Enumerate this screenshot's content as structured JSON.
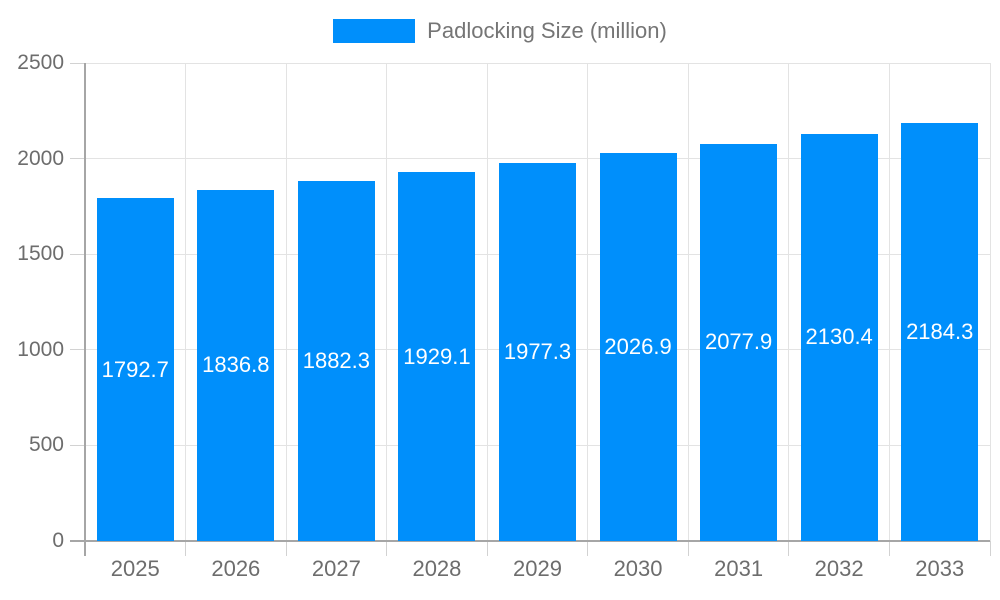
{
  "legend": {
    "label": "Padlocking Size (million)"
  },
  "chart_data": {
    "type": "bar",
    "title": "Padlocking Size (million)",
    "categories": [
      "2025",
      "2026",
      "2027",
      "2028",
      "2029",
      "2030",
      "2031",
      "2032",
      "2033"
    ],
    "series": [
      {
        "name": "Padlocking Size (million)",
        "values": [
          1792.7,
          1836.8,
          1882.3,
          1929.1,
          1977.3,
          2026.9,
          2077.9,
          2130.4,
          2184.3
        ]
      }
    ],
    "value_labels": [
      "1792.7",
      "1836.8",
      "1882.3",
      "1929.1",
      "1977.3",
      "2026.9",
      "2077.9",
      "2130.4",
      "2184.3"
    ],
    "xlabel": "",
    "ylabel": "",
    "ylim": [
      0,
      2500
    ],
    "yticks": [
      0,
      500,
      1000,
      1500,
      2000,
      2500
    ],
    "ytick_labels": [
      "0",
      "500",
      "1000",
      "1500",
      "2000",
      "2500"
    ],
    "grid": true,
    "legend_position": "top"
  },
  "colors": {
    "bar": "#008FFB",
    "value_label": "#ffffff",
    "grid": "#e3e3e3",
    "tick": "#d2d2d2",
    "axis_line": "#a6a6a6",
    "axis_text": "#6d6d6d",
    "legend_text": "#757575",
    "background": "#ffffff"
  }
}
